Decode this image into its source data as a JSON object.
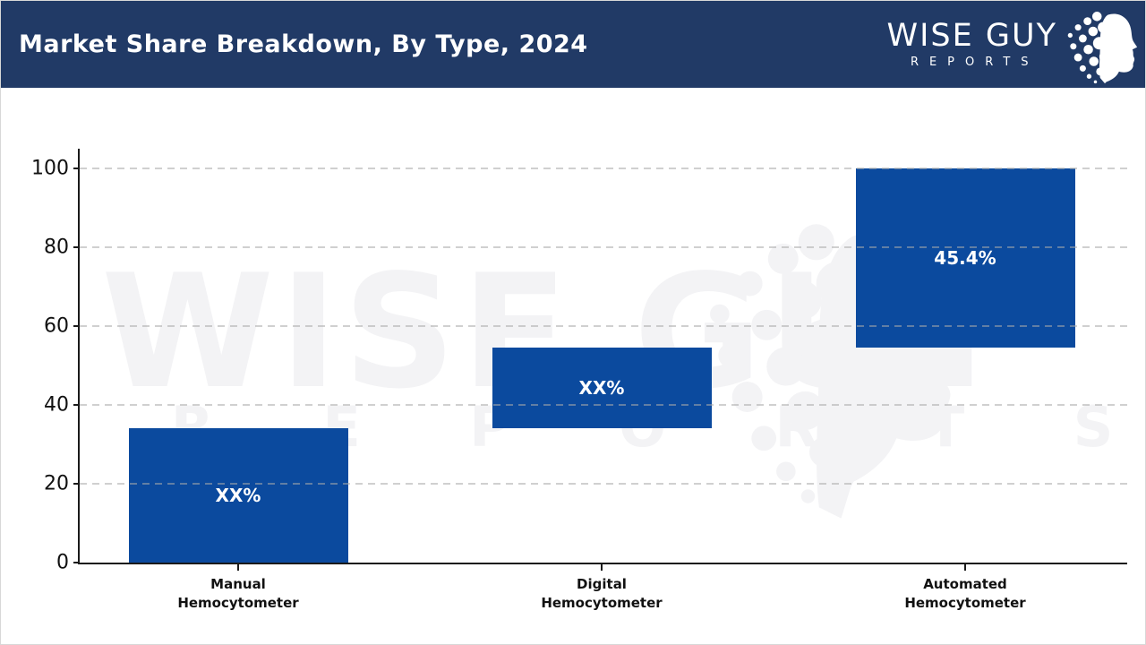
{
  "header": {
    "title": "Market Share Breakdown, By Type, 2024",
    "logo": {
      "primary": "WISE GUY",
      "secondary": "REPORTS"
    },
    "bg_color": "#213a66"
  },
  "watermark": {
    "primary": "WISE GUY",
    "secondary": "R E P O R T S"
  },
  "chart_data": {
    "type": "bar",
    "subtype": "floating-waterfall",
    "title": "Market Share Breakdown, By Type, 2024",
    "categories": [
      "Manual Hemocytometer",
      "Digital Hemocytometer",
      "Automated Hemocytometer"
    ],
    "category_lines": [
      [
        "Manual",
        "Hemocytometer"
      ],
      [
        "Digital",
        "Hemocytometer"
      ],
      [
        "Automated",
        "Hemocytometer"
      ]
    ],
    "segments": [
      {
        "category": "Manual Hemocytometer",
        "start": 0,
        "end": 34,
        "label": "XX%"
      },
      {
        "category": "Digital Hemocytometer",
        "start": 34,
        "end": 54.6,
        "label": "XX%"
      },
      {
        "category": "Automated Hemocytometer",
        "start": 54.6,
        "end": 100,
        "label": "45.4%"
      }
    ],
    "yticks": [
      0,
      20,
      40,
      60,
      80,
      100
    ],
    "ylim": [
      0,
      105
    ],
    "xlabel": "",
    "ylabel": "",
    "grid": "horizontal-dashed-over-bars",
    "legend": "none",
    "bar_color": "#0b4a9e",
    "bar_label_color": "#ffffff"
  }
}
